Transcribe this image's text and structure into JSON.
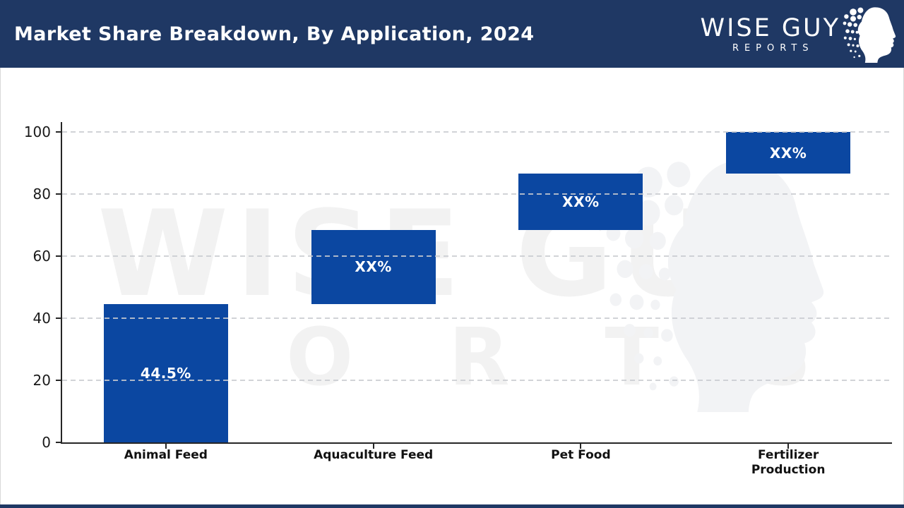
{
  "header": {
    "title": "Market Share Breakdown, By Application, 2024",
    "logo": {
      "line1": "WISE GUY",
      "line2": "REPORTS"
    }
  },
  "watermark": {
    "line1": "WISE GU",
    "line2": "P O R T S"
  },
  "colors": {
    "header_bg": "#1f3864",
    "bar": "#0b47a1",
    "bar_label": "#ffffff",
    "axis": "#262626",
    "gridline": "#c9cbd0",
    "watermark": "#f2f2f2"
  },
  "chart_data": {
    "type": "bar",
    "subtype": "waterfall",
    "title": "Market Share Breakdown, By Application, 2024",
    "categories": [
      "Animal Feed",
      "Aquaculture Feed",
      "Pet Food",
      "Fertilizer\nProduction"
    ],
    "segments": [
      {
        "category": "Animal Feed",
        "start": 0,
        "end": 44.5,
        "label": "44.5%"
      },
      {
        "category": "Aquaculture Feed",
        "start": 44.5,
        "end": 68.5,
        "label": "XX%"
      },
      {
        "category": "Pet Food",
        "start": 68.5,
        "end": 86.5,
        "label": "XX%"
      },
      {
        "category": "Fertilizer Production",
        "start": 86.5,
        "end": 100,
        "label": "XX%"
      }
    ],
    "xlabel": "",
    "ylabel": "",
    "ylim": [
      0,
      103
    ],
    "yticks": [
      0,
      20,
      40,
      60,
      80,
      100
    ],
    "grid": "horizontal-dashed",
    "legend": "none"
  }
}
